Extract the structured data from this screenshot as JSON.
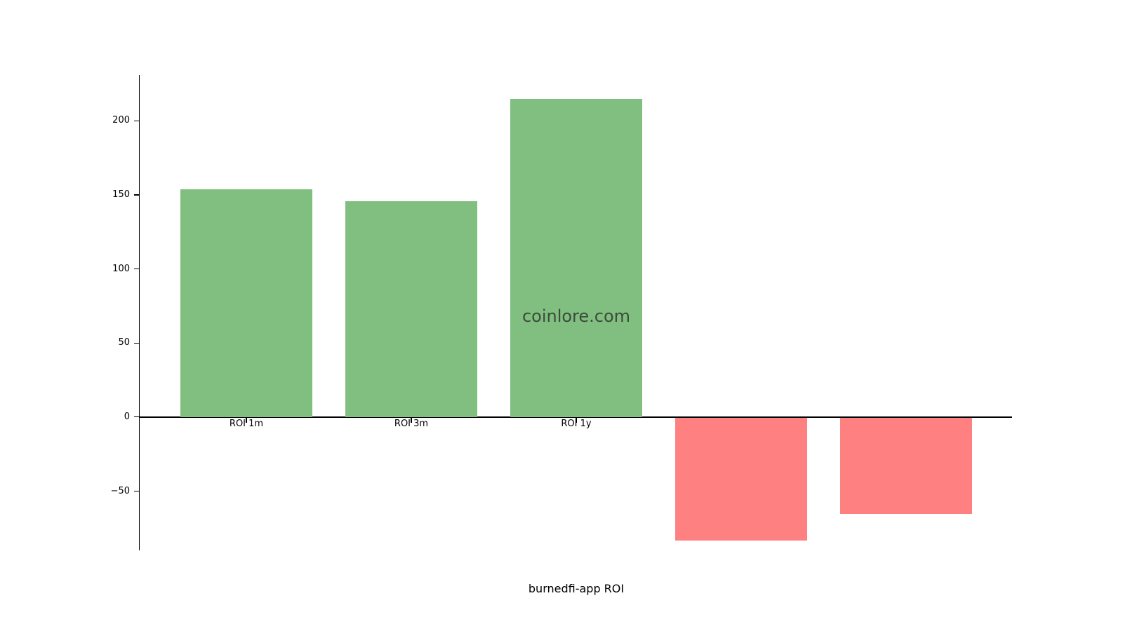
{
  "watermark": "coinlore.com",
  "chart_data": {
    "type": "bar",
    "categories": [
      "ROI 1m",
      "ROI 3m",
      "ROI 1y",
      "",
      ""
    ],
    "values": [
      154,
      146,
      215,
      -83,
      -65
    ],
    "series": [
      {
        "name": "burnedfi-app ROI %",
        "values": [
          154,
          146,
          215,
          -83,
          -65
        ]
      }
    ],
    "title": "burnedfi-app ROI",
    "xlabel": "",
    "ylabel": "",
    "ylim": [
      -90,
      231
    ],
    "yticks": [
      -50,
      0,
      50,
      100,
      150,
      200
    ],
    "grid": false,
    "legend_position": "none",
    "positive_color": "#80bf80",
    "negative_color": "#ff8080",
    "axis_color": "#000000",
    "watermark_color": "#3c4b3c"
  }
}
